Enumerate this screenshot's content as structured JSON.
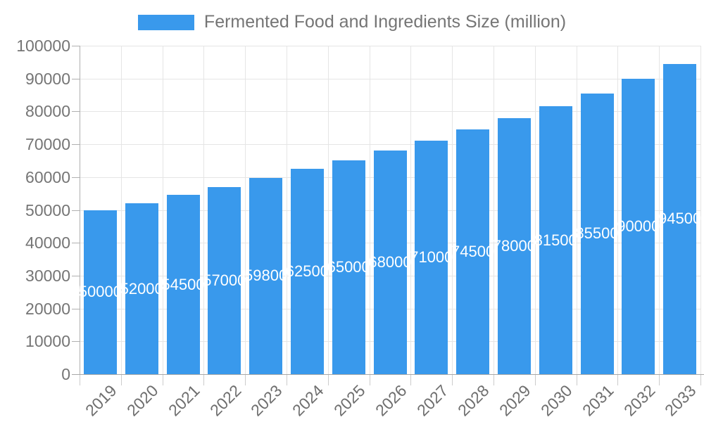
{
  "legend": {
    "label": "Fermented Food and Ingredients Size (million)"
  },
  "chart_data": {
    "type": "bar",
    "title": "",
    "legend_label": "Fermented Food and Ingredients Size (million)",
    "legend_position": "top",
    "categories": [
      "2019",
      "2020",
      "2021",
      "2022",
      "2023",
      "2024",
      "2025",
      "2026",
      "2027",
      "2028",
      "2029",
      "2030",
      "2031",
      "2032",
      "2033"
    ],
    "values": [
      50000,
      52000,
      54500,
      57000,
      59800,
      62500,
      65000,
      68000,
      71000,
      74500,
      78000,
      81500,
      85500,
      90000,
      94500
    ],
    "bar_labels": [
      "50000",
      "52000",
      "54500",
      "57000",
      "59800",
      "62500",
      "65000",
      "68000",
      "71000",
      "74500",
      "78000",
      "81500",
      "85500",
      "90000",
      "94500"
    ],
    "xlabel": "",
    "ylabel": "",
    "ylim": [
      0,
      100000
    ],
    "ytick_step": 10000,
    "y_tick_labels": [
      "0",
      "10000",
      "20000",
      "30000",
      "40000",
      "50000",
      "60000",
      "70000",
      "80000",
      "90000",
      "100000"
    ],
    "grid": true,
    "bar_color": "#3999EC",
    "bar_label_color": "#ffffff",
    "axis_text_color": "#757575",
    "grid_color": "#e5e5e5"
  }
}
